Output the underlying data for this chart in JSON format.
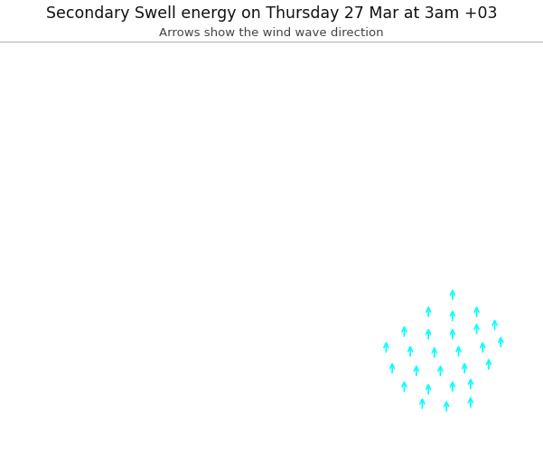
{
  "title": "Secondary Swell energy on Thursday 27 Mar at 3am +03",
  "subtitle": "Arrows show the wind wave direction",
  "title_fontsize": 12.5,
  "subtitle_fontsize": 9.5,
  "bg_color": "#ffffff",
  "ocean_color": "#000000",
  "land_color": "#a0a0a0",
  "border_color": "#000000",
  "border_lw": 0.6,
  "arrow_color": "#00ffff",
  "figsize": [
    6.01,
    5.11
  ],
  "dpi": 100,
  "extent": [
    25,
    70,
    10,
    42
  ],
  "arrows": [
    {
      "lon": 62.5,
      "lat": 22.8
    },
    {
      "lon": 60.5,
      "lat": 21.5
    },
    {
      "lon": 62.5,
      "lat": 21.2
    },
    {
      "lon": 64.5,
      "lat": 21.5
    },
    {
      "lon": 58.5,
      "lat": 20.0
    },
    {
      "lon": 60.5,
      "lat": 19.8
    },
    {
      "lon": 62.5,
      "lat": 19.8
    },
    {
      "lon": 64.5,
      "lat": 20.2
    },
    {
      "lon": 66.0,
      "lat": 20.5
    },
    {
      "lon": 57.0,
      "lat": 18.8
    },
    {
      "lon": 59.0,
      "lat": 18.5
    },
    {
      "lon": 61.0,
      "lat": 18.4
    },
    {
      "lon": 63.0,
      "lat": 18.5
    },
    {
      "lon": 65.0,
      "lat": 18.8
    },
    {
      "lon": 66.5,
      "lat": 19.2
    },
    {
      "lon": 57.5,
      "lat": 17.2
    },
    {
      "lon": 59.5,
      "lat": 17.0
    },
    {
      "lon": 61.5,
      "lat": 17.0
    },
    {
      "lon": 63.5,
      "lat": 17.2
    },
    {
      "lon": 65.5,
      "lat": 17.5
    },
    {
      "lon": 58.5,
      "lat": 15.8
    },
    {
      "lon": 60.5,
      "lat": 15.6
    },
    {
      "lon": 62.5,
      "lat": 15.8
    },
    {
      "lon": 64.0,
      "lat": 16.0
    },
    {
      "lon": 60.0,
      "lat": 14.5
    },
    {
      "lon": 62.0,
      "lat": 14.3
    },
    {
      "lon": 64.0,
      "lat": 14.6
    }
  ]
}
